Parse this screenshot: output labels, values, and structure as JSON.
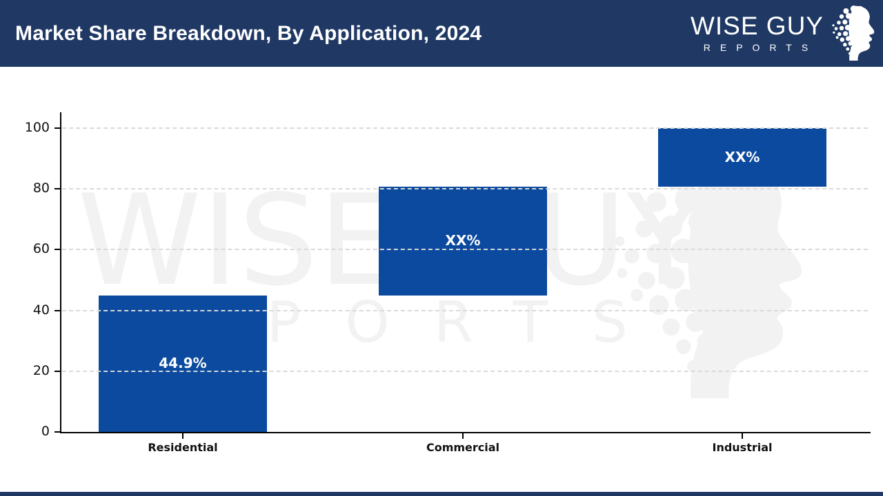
{
  "header": {
    "title": "Market Share Breakdown, By Application, 2024",
    "logo": {
      "line1": "WISE GUY",
      "line2": "REPORTS"
    }
  },
  "watermark": {
    "line1": "WISE GUY",
    "line2": "REPORTS"
  },
  "chart_data": {
    "type": "bar",
    "subtype": "waterfall",
    "title": "Market Share Breakdown, By Application, 2024",
    "categories": [
      "Residential",
      "Commercial",
      "Industrial"
    ],
    "segments": [
      {
        "category": "Residential",
        "start": 0,
        "end": 44.9,
        "label": "44.9%"
      },
      {
        "category": "Commercial",
        "start": 44.9,
        "end": 80.7,
        "label": "XX%"
      },
      {
        "category": "Industrial",
        "start": 80.7,
        "end": 100,
        "label": "XX%"
      }
    ],
    "xlabel": "",
    "ylabel": "",
    "ylim": [
      0,
      100
    ],
    "yticks": [
      0,
      20,
      40,
      60,
      80,
      100
    ],
    "grid": "horizontal-dashed",
    "legend": "none",
    "bar_color": "#0b4a9e",
    "bar_label_color": "#ffffff",
    "grid_color": "#d9d9d9",
    "axis_color": "#000000",
    "header_bg": "#1f3864",
    "watermark_color": "#f2f2f3"
  }
}
